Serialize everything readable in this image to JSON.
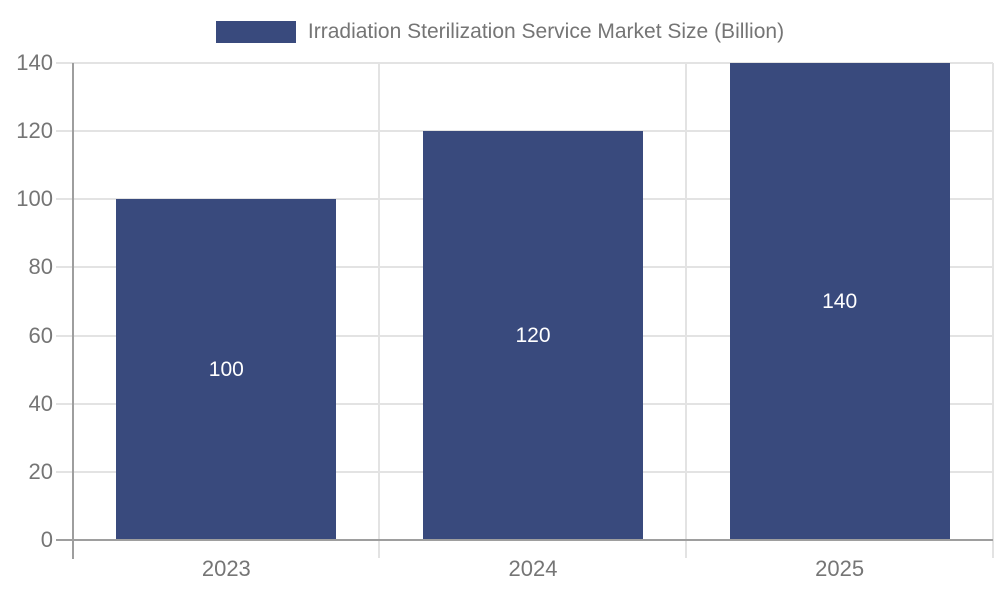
{
  "legend": {
    "label": "Irradiation Sterilization Service Market Size (Billion)"
  },
  "chart_data": {
    "type": "bar",
    "title": "",
    "categories": [
      "2023",
      "2024",
      "2025"
    ],
    "values": [
      100,
      120,
      140
    ],
    "series": [
      {
        "name": "Irradiation Sterilization Service Market Size (Billion)",
        "values": [
          100,
          120,
          140
        ]
      }
    ],
    "data_labels": [
      "100",
      "120",
      "140"
    ],
    "xlabel": "",
    "ylabel": "",
    "ylim": [
      0,
      140
    ],
    "yticks": [
      0,
      20,
      40,
      60,
      80,
      100,
      120,
      140
    ],
    "ytick_labels": [
      "0",
      "20",
      "40",
      "60",
      "80",
      "100",
      "120",
      "140"
    ],
    "grid": true,
    "legend_position": "top",
    "colors": {
      "bar": "#394A7D",
      "bar_value_label": "#ffffff",
      "axis_line": "#9E9E9E",
      "gridline": "#E3E3E3",
      "tick_text": "#757575",
      "legend_text": "#757575",
      "background": "#ffffff"
    }
  }
}
